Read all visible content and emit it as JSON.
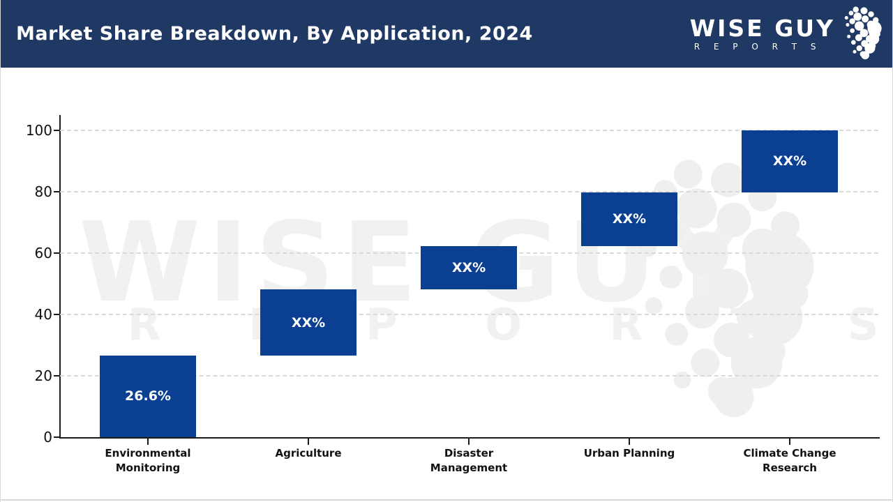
{
  "header": {
    "title": "Market Share Breakdown, By Application, 2024",
    "bg_color": "#1f3864",
    "logo": {
      "line1": "WISE GUY",
      "line2": "R E P O R T S"
    }
  },
  "watermark": {
    "line1": "WISE GUY",
    "line2": "R E P O R T S"
  },
  "chart_data": {
    "type": "bar",
    "subtype": "waterfall",
    "title": "Market Share Breakdown, By Application, 2024",
    "categories": [
      "Environmental\nMonitoring",
      "Agriculture",
      "Disaster\nManagement",
      "Urban Planning",
      "Climate Change\nResearch"
    ],
    "segments": [
      {
        "category": "Environmental Monitoring",
        "start": 0,
        "end": 26.6,
        "label": "26.6%"
      },
      {
        "category": "Agriculture",
        "start": 26.6,
        "end": 48.1,
        "label": "XX%"
      },
      {
        "category": "Disaster Management",
        "start": 48.1,
        "end": 62.3,
        "label": "XX%"
      },
      {
        "category": "Urban Planning",
        "start": 62.3,
        "end": 79.8,
        "label": "XX%"
      },
      {
        "category": "Climate Change Research",
        "start": 79.8,
        "end": 100,
        "label": "XX%"
      }
    ],
    "yticks": [
      0,
      20,
      40,
      60,
      80,
      100
    ],
    "ylim": [
      0,
      105
    ],
    "xlabel": "",
    "ylabel": "",
    "grid": "horizontal-dashed",
    "legend": "none",
    "bar_color": "#0a3f92",
    "bar_label_color": "#ffffff"
  }
}
